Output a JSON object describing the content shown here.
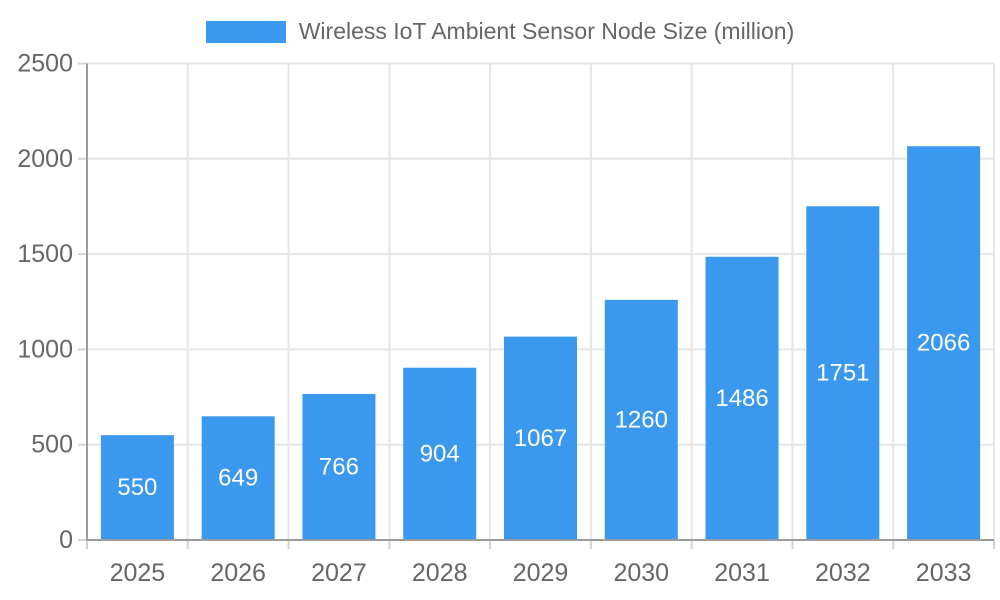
{
  "legend": {
    "label": "Wireless IoT Ambient Sensor Node Size (million)",
    "swatch_color": "#3b98ef"
  },
  "chart_data": {
    "type": "bar",
    "title": "Wireless IoT Ambient Sensor Node Size (million)",
    "categories": [
      "2025",
      "2026",
      "2027",
      "2028",
      "2029",
      "2030",
      "2031",
      "2032",
      "2033"
    ],
    "values": [
      550,
      649,
      766,
      904,
      1067,
      1260,
      1486,
      1751,
      2066
    ],
    "series": [
      {
        "name": "Wireless IoT Ambient Sensor Node Size (million)",
        "values": [
          550,
          649,
          766,
          904,
          1067,
          1260,
          1486,
          1751,
          2066
        ]
      }
    ],
    "xlabel": "",
    "ylabel": "",
    "ylim": [
      0,
      2500
    ],
    "ytick_step": 500,
    "ytick_labels": [
      "0",
      "500",
      "1000",
      "1500",
      "2000",
      "2500"
    ],
    "grid": true,
    "legend_position": "top",
    "value_labels_shown": true,
    "colors": {
      "bar_fill": "#3b98ef",
      "value_label": "#ffffff",
      "axis_text": "#666666",
      "grid_line": "#e6e6e6",
      "tick_mark": "#d4d4d4",
      "axis_line": "#9b9b9b",
      "legend_text": "#666666"
    }
  }
}
